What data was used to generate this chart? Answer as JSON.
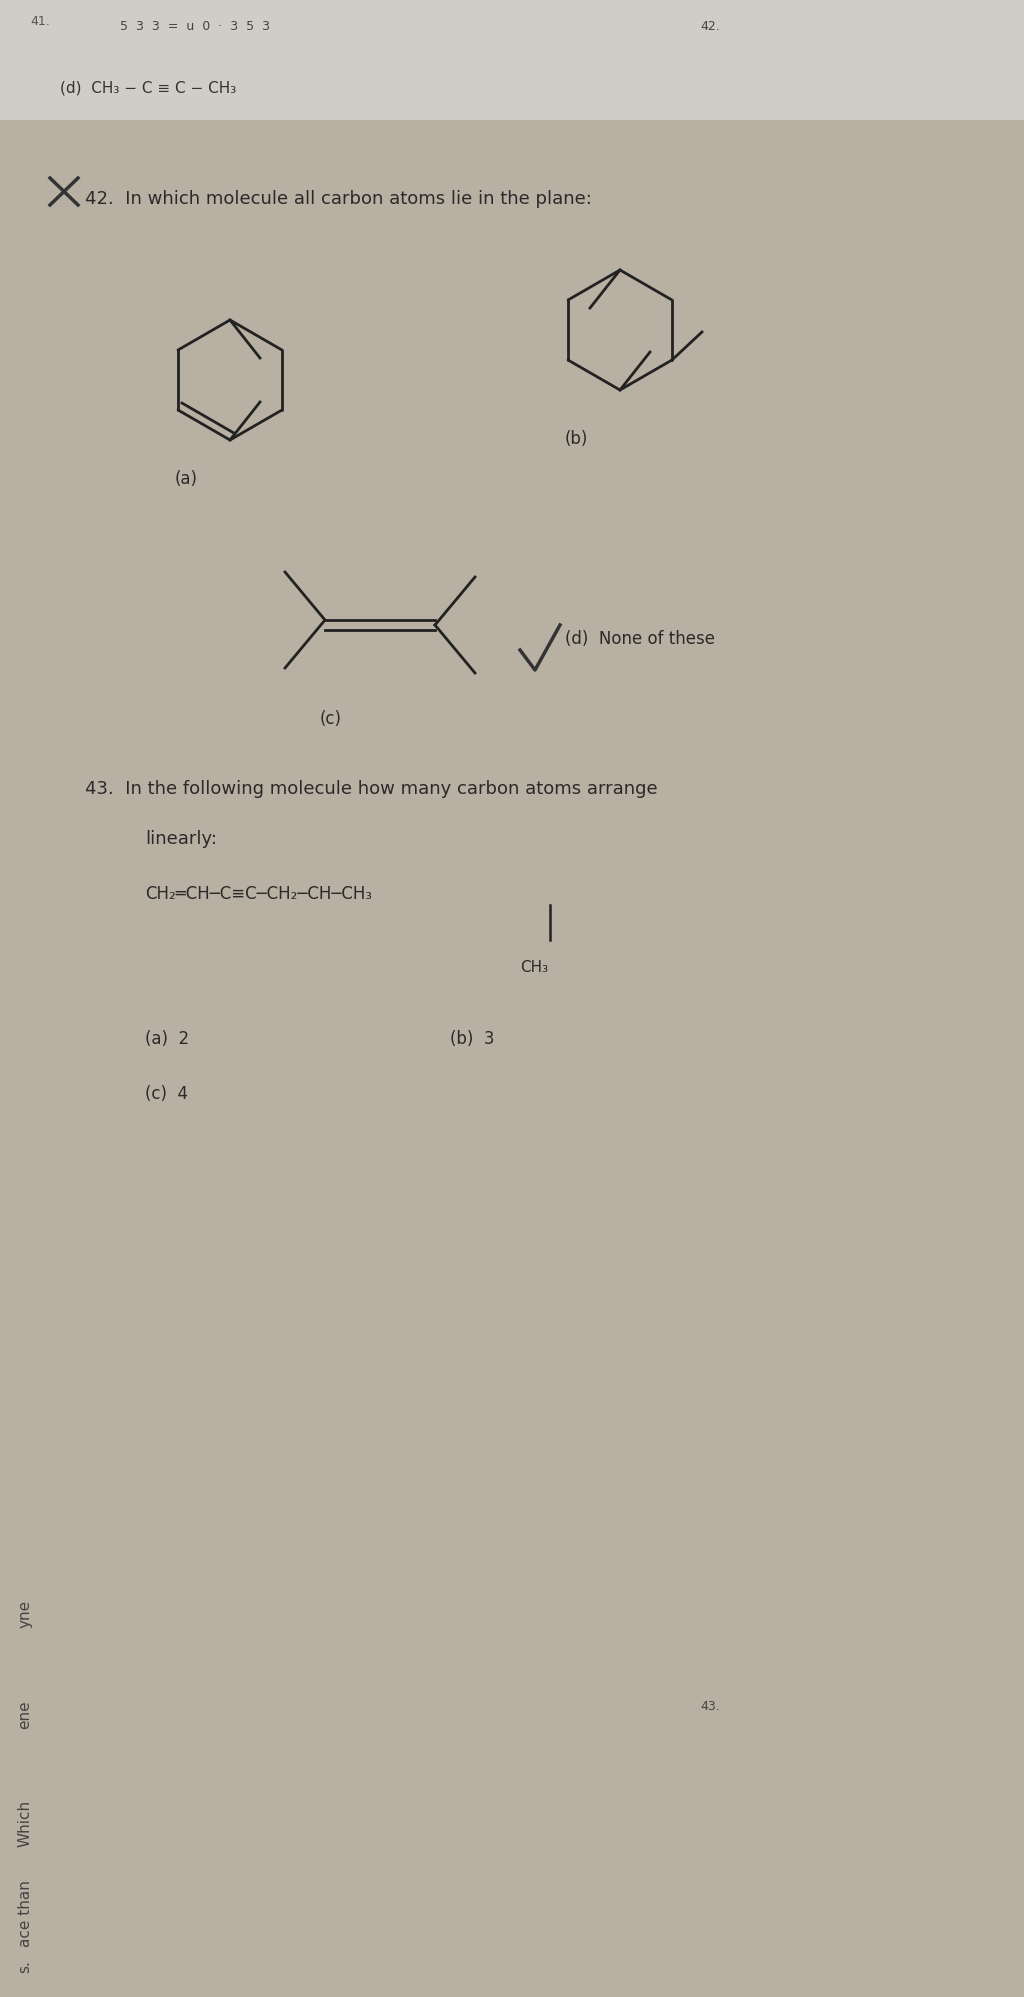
{
  "bg_color": "#b8b0a2",
  "text_color": "#2a2a2a",
  "q42_text": "42.  In which molecule all carbon atoms lie in the plane:",
  "q43_text1": "43.  In the following molecule how many carbon atoms arrange",
  "q43_text2": "linearly:",
  "q43_mol": "CH₂═CH—C≡C—CH₂—CH—CH₃",
  "q43_branch": "CH₃",
  "prev_d": "(d)  CH₃ − C ≡ C − CH₃",
  "label_a": "(a)",
  "label_b": "(b)",
  "label_c": "(c)",
  "label_d_none": "(d)  None of these",
  "opt_a2": "(a)  2",
  "opt_b3": "(b)  3",
  "opt_c4": "(c)  4",
  "side_yne": "yne",
  "side_ene": "ene",
  "side_which": "Which",
  "side_ace": "ace than",
  "side_s": "s."
}
